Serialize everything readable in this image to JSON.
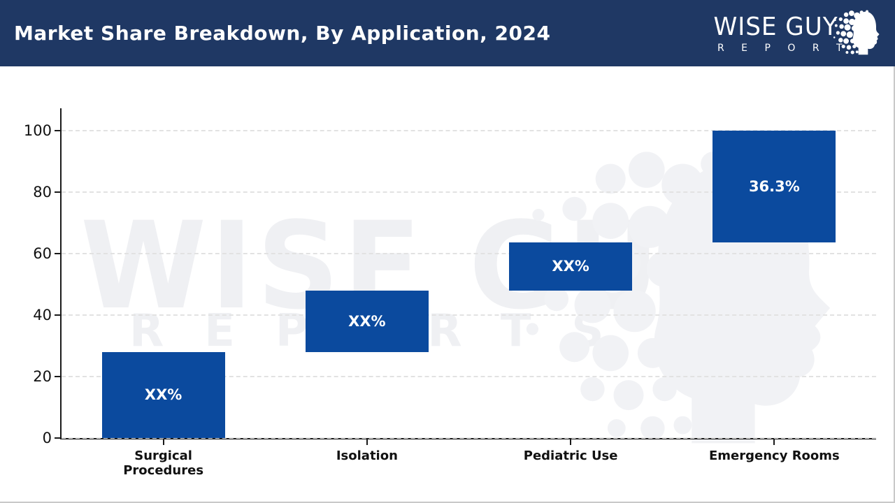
{
  "header": {
    "title": "Market Share Breakdown, By Application, 2024",
    "logo": {
      "line1": "WISE GUY",
      "line2": "R E P O R T S"
    }
  },
  "watermark": {
    "line1": "WISE GUY",
    "line2": "REPORTS"
  },
  "colors": {
    "header_bg": "#1f3864",
    "bar": "#0b4a9e",
    "bar_label_text": "#ffffff",
    "axis": "#1a1a1a",
    "gridline": "#e2e2e2",
    "tick_text": "#111111",
    "watermark": "#eff0f3",
    "edge_border": "#c9c9c9"
  },
  "chart_data": {
    "type": "bar",
    "subtype": "waterfall",
    "title": "Market Share Breakdown, By Application, 2024",
    "xlabel": "",
    "ylabel": "",
    "ylim": [
      0,
      107
    ],
    "yticks": [
      0,
      20,
      40,
      60,
      80,
      100
    ],
    "grid": "horizontal-dashed",
    "legend": "none",
    "bar_color": "#0b4a9e",
    "categories": [
      "Surgical Procedures",
      "Isolation",
      "Pediatric Use",
      "Emergency Rooms"
    ],
    "bars": [
      {
        "category": "Surgical Procedures",
        "axis_label": "Surgical\nProcedures",
        "start": 0,
        "end": 28,
        "value": 28,
        "label": "XX%"
      },
      {
        "category": "Isolation",
        "axis_label": "Isolation",
        "start": 28,
        "end": 48,
        "value": 20,
        "label": "XX%"
      },
      {
        "category": "Pediatric Use",
        "axis_label": "Pediatric Use",
        "start": 48,
        "end": 63.7,
        "value": 15.7,
        "label": "XX%"
      },
      {
        "category": "Emergency Rooms",
        "axis_label": "Emergency Rooms",
        "start": 63.7,
        "end": 100,
        "value": 36.3,
        "label": "36.3%"
      }
    ]
  }
}
